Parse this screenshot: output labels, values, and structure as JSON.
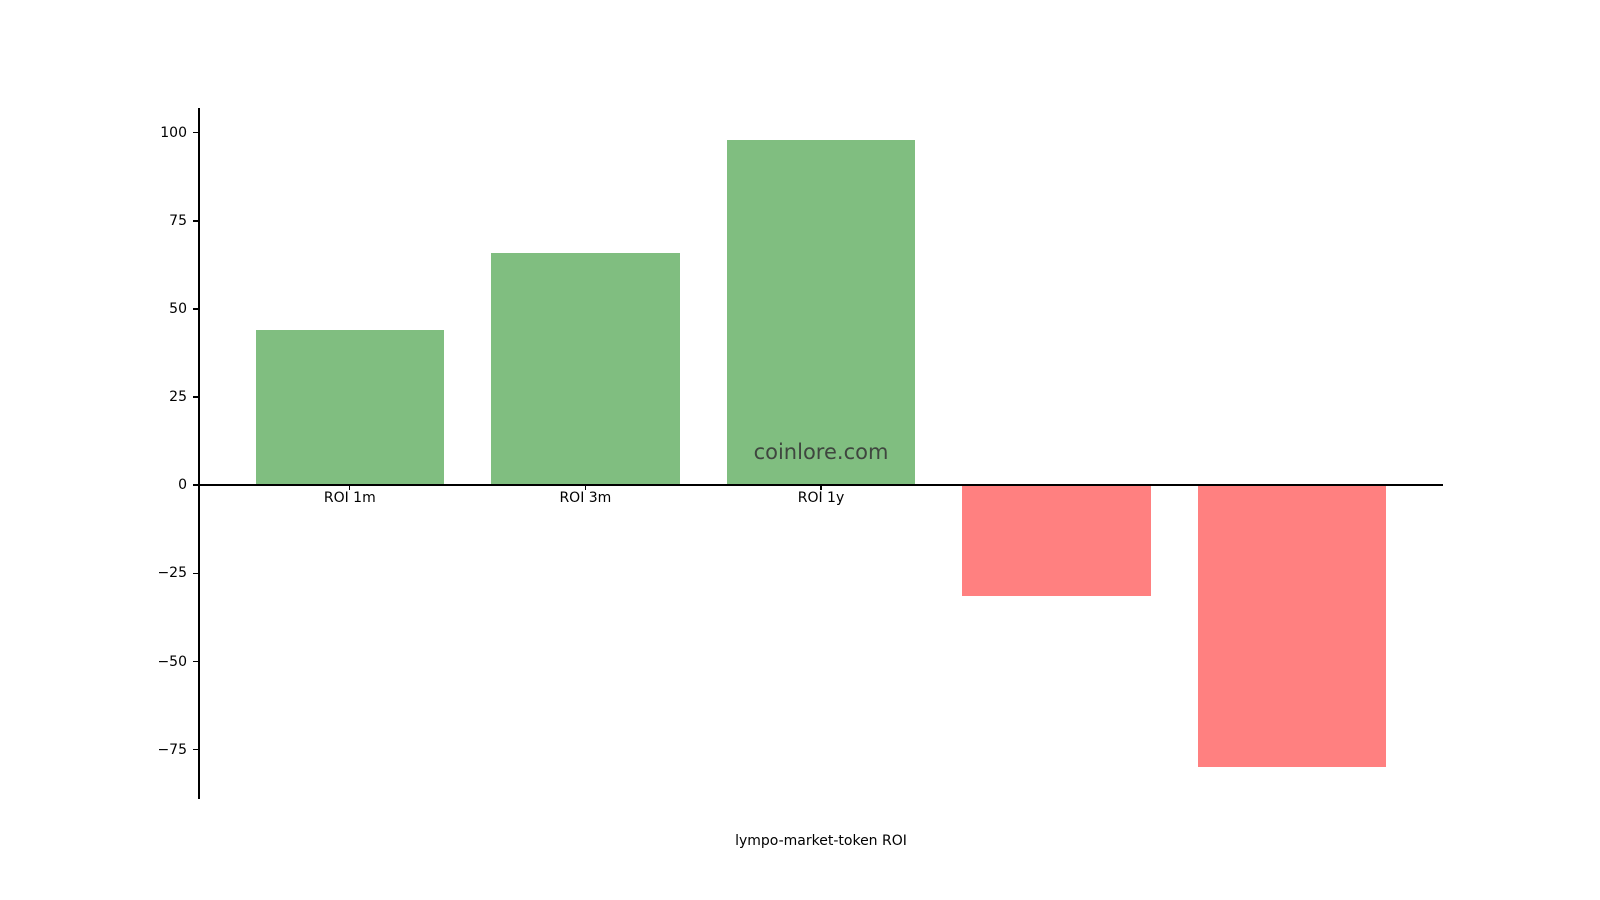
{
  "chart_data": {
    "type": "bar",
    "title": "lympo-market-token ROI",
    "watermark": "coinlore.com",
    "categories": [
      "ROI 1m",
      "ROI 3m",
      "ROI 1y",
      "",
      ""
    ],
    "values": [
      44,
      66,
      98,
      -31.5,
      -80
    ],
    "positive_color": "#80be80",
    "negative_color": "#ff8080",
    "axis_color": "#000000",
    "tick_text_color": "#000000",
    "watermark_color": "#3f463f",
    "yticks": [
      100,
      75,
      50,
      25,
      0,
      -25,
      -50,
      -75
    ],
    "ylim": [
      -89,
      107
    ],
    "xlabel": "",
    "ylabel": "",
    "grid": false,
    "legend": "none"
  }
}
